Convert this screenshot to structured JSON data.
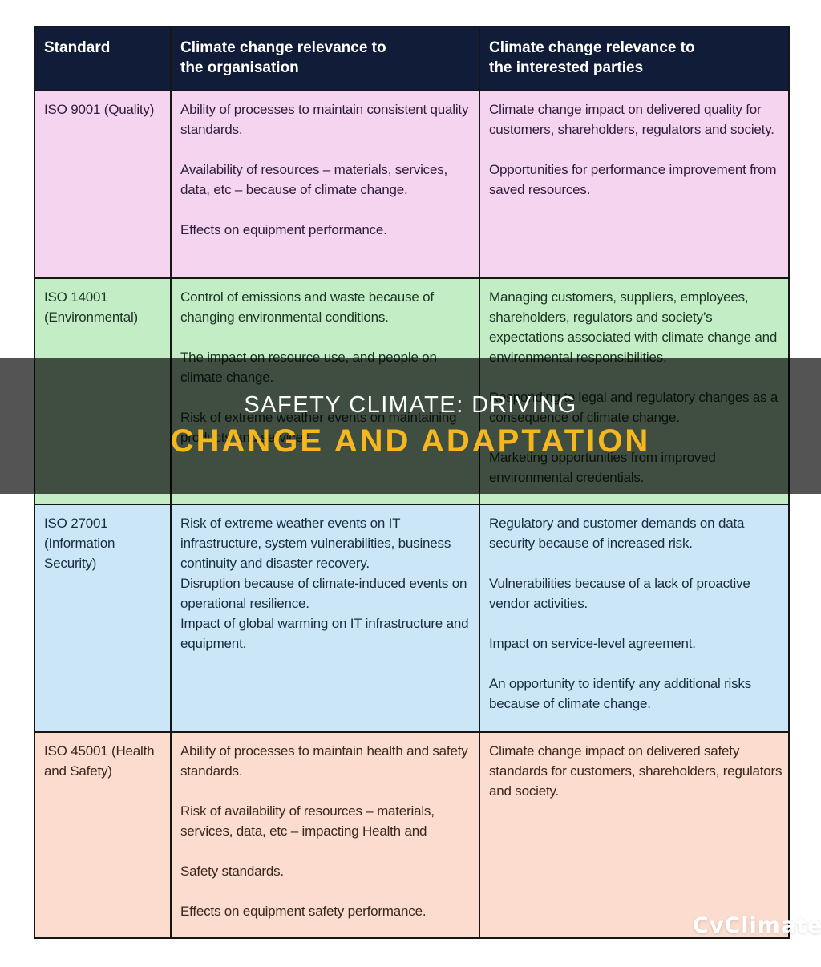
{
  "table": {
    "header": {
      "bg": "#111c38",
      "text_color": "#ffffff",
      "col1": "Standard",
      "col2_line1": "Climate change relevance to",
      "col2_line2": "the organisation",
      "col3_line1": "Climate change relevance to",
      "col3_line2": "the interested parties"
    },
    "rows": [
      {
        "standard": "ISO 9001 (Quality)",
        "bg": "#f4d4ee",
        "organisation": [
          "Ability of processes to maintain consistent quality standards.",
          "Availability of resources – materials, services, data, etc – because of climate change.",
          "Effects on equipment performance."
        ],
        "interested_parties": [
          "Climate change impact on delivered quality for customers, shareholders, regulators and society.",
          "Opportunities for performance improvement from saved resources."
        ]
      },
      {
        "standard": "ISO 14001 (Environmental)",
        "bg": "#c2edc5",
        "organisation": [
          "Control of emissions and waste because of changing environmental conditions.",
          "The impact on resource use, and people on climate change.",
          "Risk of extreme weather events on maintaining products and services."
        ],
        "interested_parties": [
          "Managing customers, suppliers, employees, shareholders, regulators and society’s expectations associated with climate change and environmental responsibilities.",
          "Responding to legal and regulatory changes as a consequence of climate change.",
          "Marketing opportunities from improved environmental credentials."
        ]
      },
      {
        "standard": "ISO 27001 (Information Security)",
        "bg": "#cbe7f7",
        "organisation": [
          "Risk of extreme weather events on IT infrastructure, system vulnerabilities, business continuity and disaster recovery.",
          "Disruption because of climate-induced events on operational resilience.",
          "Impact of global warming on IT infrastructure and equipment."
        ],
        "interested_parties": [
          "Regulatory and customer demands on data security because of increased risk.",
          "Vulnerabilities because of a lack of proactive vendor activities.",
          "Impact on service-level agreement.",
          "An opportunity to identify any additional risks because of climate change."
        ]
      },
      {
        "standard": "ISO 45001 (Health and Safety)",
        "bg": "#fbdcce",
        "organisation": [
          "Ability of processes to maintain health and safety standards.",
          "Risk of availability of resources – materials, services, data, etc – impacting Health and",
          "Safety standards.",
          "Effects on equipment safety performance."
        ],
        "interested_parties": [
          "Climate change impact on delivered safety standards for customers, shareholders, regulators and society."
        ]
      }
    ]
  },
  "banner": {
    "overlay_color": "rgba(0,0,0,0.67)",
    "line1": "SAFETY CLIMATE: DRIVING",
    "line1_color": "#ffffff",
    "line2": "CHANGE AND ADAPTATION",
    "line2_color": "#f4b71e"
  },
  "watermark": {
    "text": "CvClimate",
    "color": "#ffffff"
  }
}
